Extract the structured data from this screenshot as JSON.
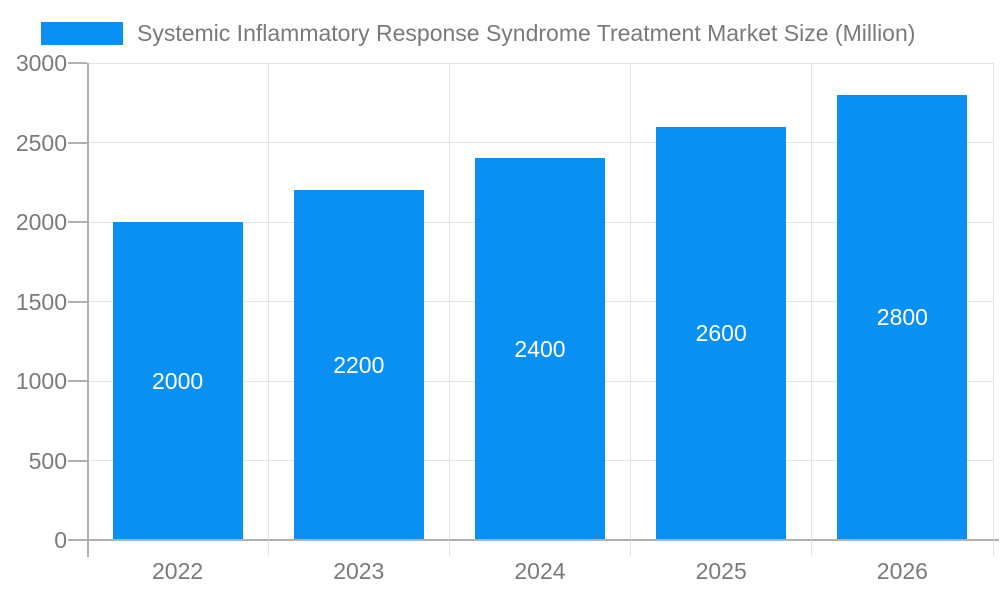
{
  "legend": {
    "label": "Systemic Inflammatory Response Syndrome Treatment Market Size (Million)",
    "swatch_color": "#0990F2"
  },
  "chart_data": {
    "type": "bar",
    "title": "Systemic Inflammatory Response Syndrome Treatment Market Size (Million)",
    "categories": [
      "2022",
      "2023",
      "2024",
      "2025",
      "2026"
    ],
    "series": [
      {
        "name": "Systemic Inflammatory Response Syndrome Treatment Market Size (Million)",
        "values": [
          2000,
          2200,
          2400,
          2600,
          2800
        ]
      }
    ],
    "value_labels": [
      "2000",
      "2200",
      "2400",
      "2600",
      "2800"
    ],
    "xlabel": "",
    "ylabel": "",
    "ylim": [
      0,
      3000
    ],
    "yticks": [
      0,
      500,
      1000,
      1500,
      2000,
      2500,
      3000
    ],
    "grid": true,
    "legend_position": "top",
    "colors": {
      "bar": "#0990F2",
      "value_label": "#FFFFFF",
      "axis_text": "#7A7A7A",
      "axis_line": "#B0B0B0",
      "gridline": "#E3E3E3",
      "background": "#FFFFFF"
    }
  }
}
